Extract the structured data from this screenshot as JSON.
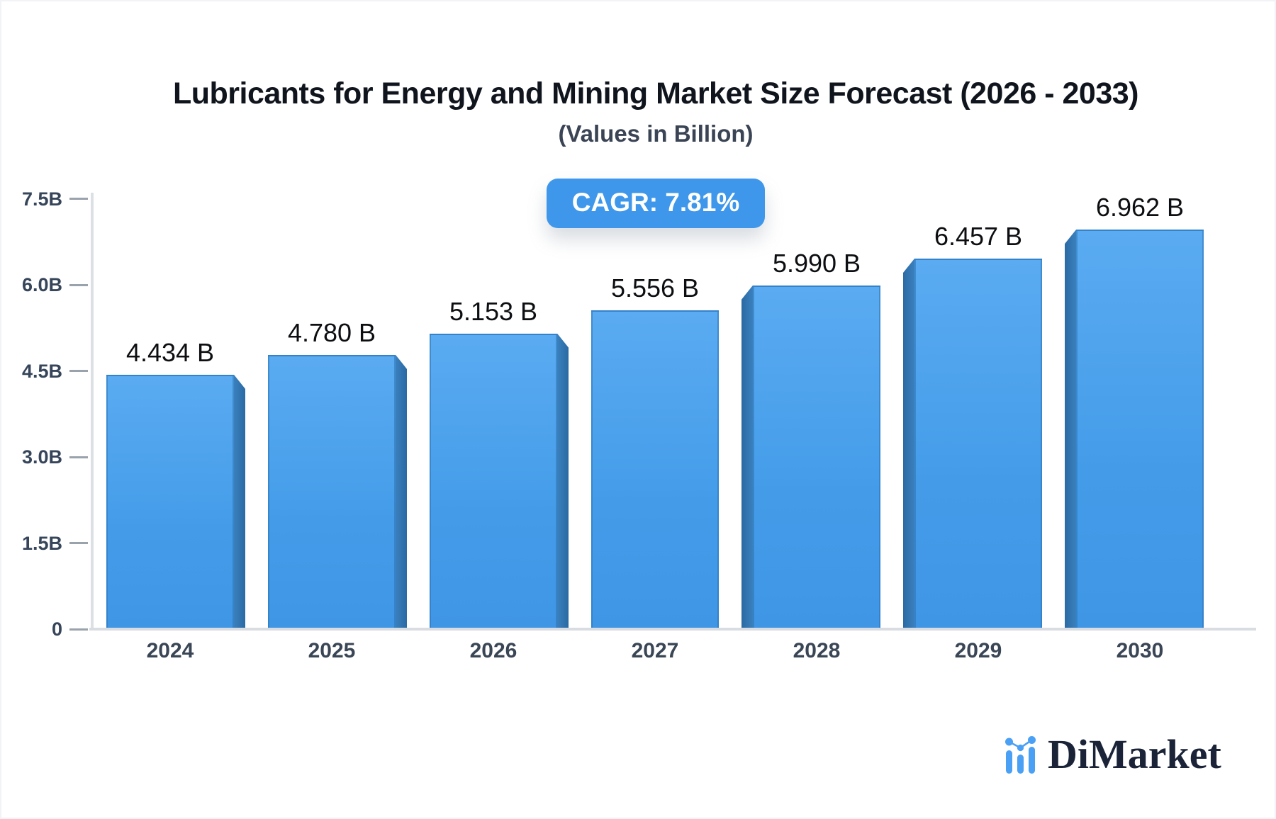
{
  "header": {
    "title": "Lubricants for Energy and Mining Market Size Forecast (2026 - 2033)",
    "subtitle": "(Values in Billion)",
    "cagr_label": "CAGR: 7.81%"
  },
  "chart_data": {
    "type": "bar",
    "title": "Lubricants for Energy and Mining Market Size Forecast (2026 - 2033)",
    "subtitle": "(Values in Billion)",
    "cagr_pct": 7.81,
    "categories": [
      "2024",
      "2025",
      "2026",
      "2027",
      "2028",
      "2029",
      "2030"
    ],
    "values": [
      4.434,
      4.78,
      5.153,
      5.556,
      5.99,
      6.457,
      6.962
    ],
    "value_labels": [
      "4.434 B",
      "4.780 B",
      "5.153 B",
      "5.556 B",
      "5.990 B",
      "6.457 B",
      "6.962 B"
    ],
    "unit": "Billion",
    "ylim": [
      0,
      7.5
    ],
    "yticks": [
      {
        "value": 0,
        "label": "0"
      },
      {
        "value": 1.5,
        "label": "1.5B"
      },
      {
        "value": 3.0,
        "label": "3.0B"
      },
      {
        "value": 4.5,
        "label": "4.5B"
      },
      {
        "value": 6.0,
        "label": "6.0B"
      },
      {
        "value": 7.5,
        "label": "7.5B"
      }
    ],
    "grid": false,
    "legend": "none",
    "bar_color": "#4aa1ec",
    "bar_side_color": "#2f6fa9",
    "style": "3d-extruded-bars, perspective toward center"
  },
  "colors": {
    "accent_blue": "#3e97ea",
    "bar_face": "#4aa1ec",
    "bar_side": "#2f6fa9",
    "axis_line": "#d9dde2",
    "tick_text": "#36455a",
    "title_text": "#10151d",
    "logo_navy": "#1a2338",
    "logo_blue": "#4aa0f5"
  },
  "logo": {
    "text": "DiMarket",
    "icon": "bar-chart-with-trend-dots-icon"
  }
}
